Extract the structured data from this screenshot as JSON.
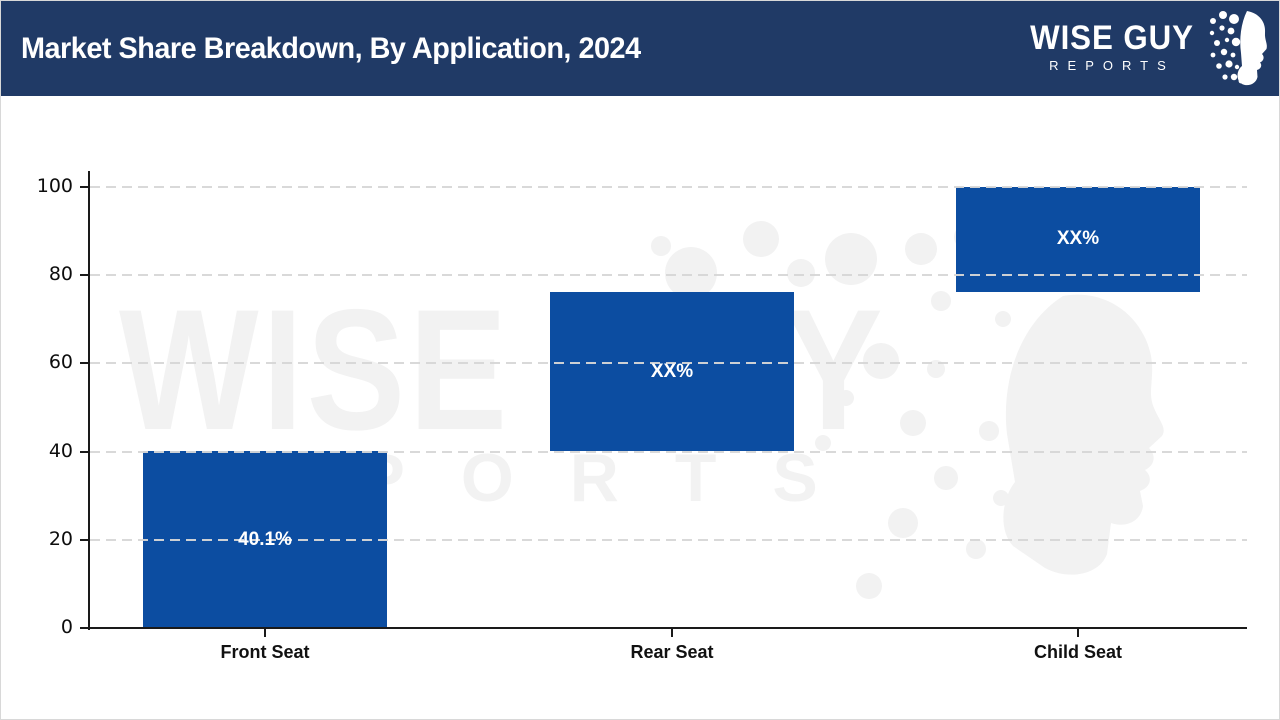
{
  "header": {
    "title": "Market Share Breakdown, By Application, 2024",
    "bg_color": "#203a66",
    "logo": {
      "line1": "WISE GUY",
      "line2": "REPORTS"
    }
  },
  "watermark": {
    "line1": "WISE GUY",
    "line2": "REPORTS"
  },
  "chart_data": {
    "type": "bar",
    "variant": "floating-waterfall",
    "title": "Market Share Breakdown, By Application, 2024",
    "categories": [
      "Front Seat",
      "Rear Seat",
      "Child Seat"
    ],
    "series": [
      {
        "name": "Market Share (%)",
        "segments": [
          {
            "category": "Front Seat",
            "start": 0,
            "end": 40.1,
            "label": "40.1%"
          },
          {
            "category": "Rear Seat",
            "start": 40.1,
            "end": 76.2,
            "label": "XX%"
          },
          {
            "category": "Child Seat",
            "start": 76.2,
            "end": 100,
            "label": "XX%"
          }
        ]
      }
    ],
    "yticks": [
      0,
      20,
      40,
      60,
      80,
      100
    ],
    "ylim": [
      0,
      104
    ],
    "xlabel": "",
    "ylabel": "",
    "grid": "horizontal-dashed",
    "legend": "none",
    "bar_color": "#0c4da1",
    "bar_label_color": "#ffffff",
    "gridline_color": "#d7d7d7"
  }
}
